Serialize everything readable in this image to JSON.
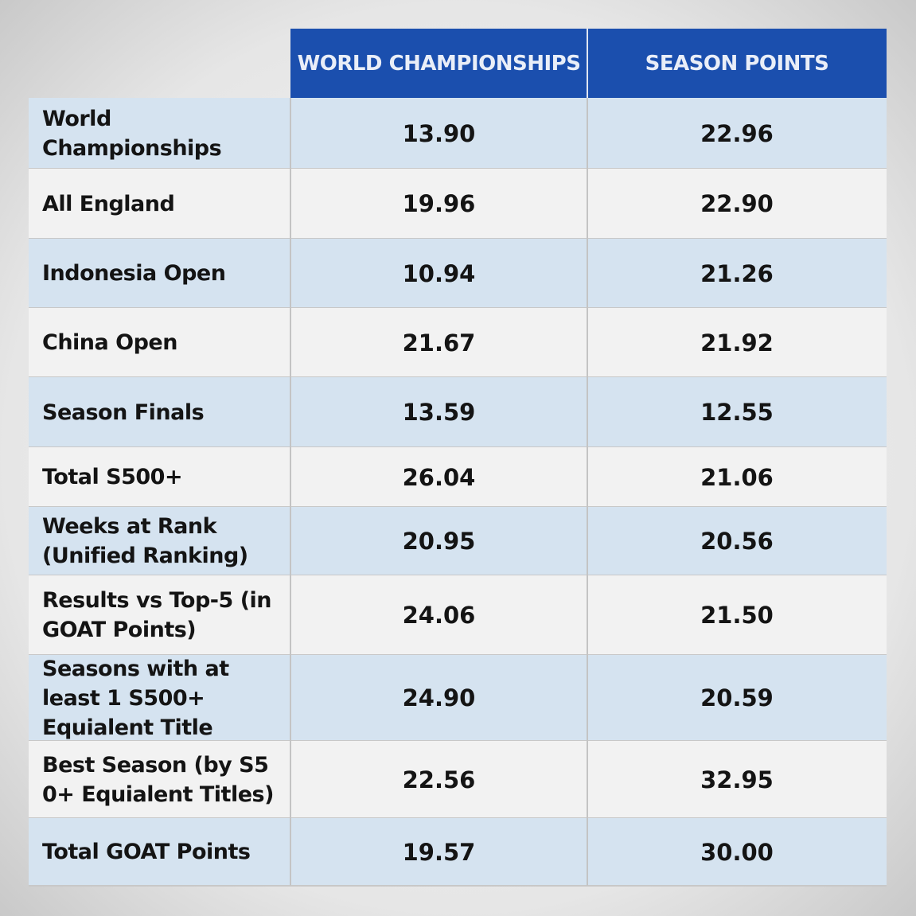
{
  "table": {
    "header": [
      "WORLD CHAMPIONSHIPS",
      "SEASON POINTS"
    ],
    "rows": [
      [
        "World Championships",
        "13.90",
        "22.96"
      ],
      [
        "All England",
        "19.96",
        "22.90"
      ],
      [
        "Indonesia Open",
        "10.94",
        "21.26"
      ],
      [
        "China Open",
        "21.67",
        "21.92"
      ],
      [
        "Season Finals",
        "13.59",
        "12.55"
      ],
      [
        "Total S500+",
        "26.04",
        "21.06"
      ],
      [
        "Weeks at Rank (Unified Ranking)",
        "20.95",
        "20.56"
      ],
      [
        "Results vs Top-5 (in GOAT Points)",
        "24.06",
        "21.50"
      ],
      [
        "Seasons with at least 1 S500+ Equialent Title",
        "24.90",
        "20.59"
      ],
      [
        "Best Season (by S5 0+ Equialent Titles)",
        "22.56",
        "32.95"
      ],
      [
        "Total GOAT Points",
        "19.57",
        "30.00"
      ]
    ]
  }
}
